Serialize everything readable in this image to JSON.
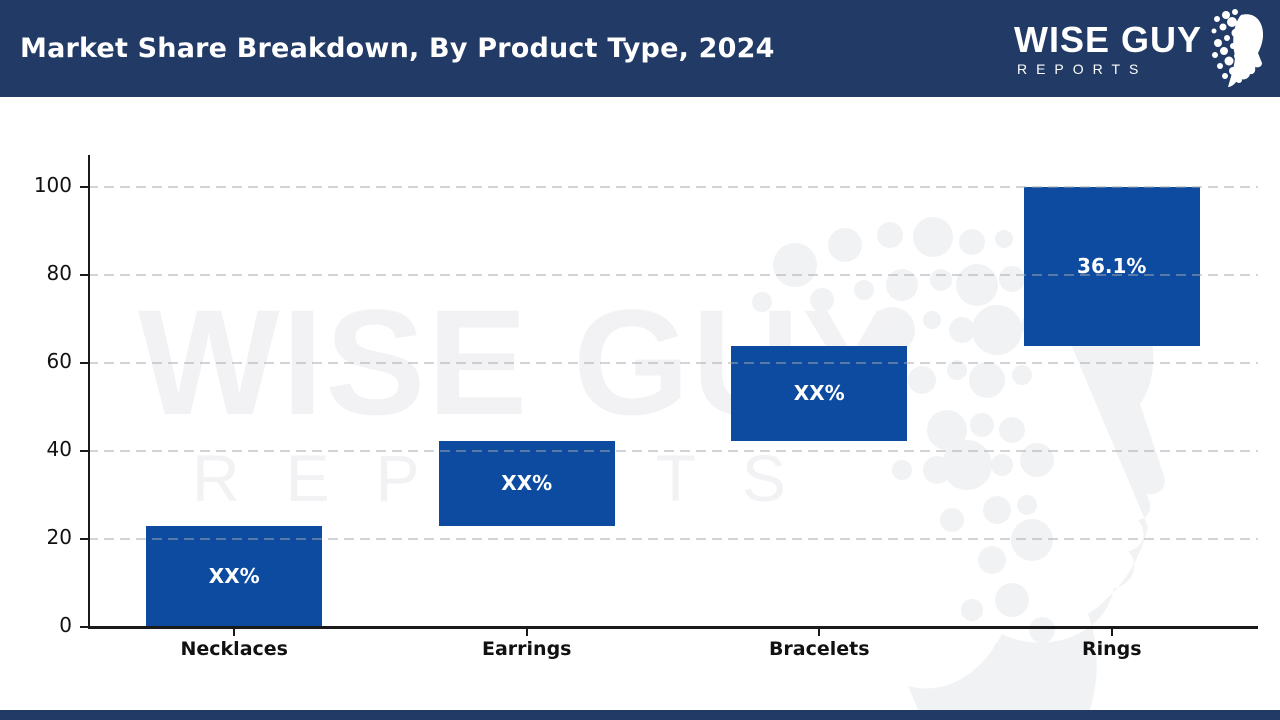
{
  "header": {
    "title": "Market Share Breakdown, By Product Type, 2024",
    "logo": {
      "line1": "WISE GUY",
      "line2": "REPORTS"
    }
  },
  "watermark": {
    "line1": "WISE GUY",
    "line2": "REPORTS"
  },
  "colors": {
    "header_bg": "#223a66",
    "bar_blue": "#0c4ba0",
    "grid_gray": "#d6d6d6",
    "watermark_gray": "#f2f2f4",
    "label_white": "#ffffff",
    "axis_black": "#1a1a1a"
  },
  "chart_data": {
    "type": "bar",
    "subtype": "waterfall-floating-bars",
    "title": "Market Share Breakdown, By Product Type, 2024",
    "categories": [
      "Necklaces",
      "Earrings",
      "Bracelets",
      "Rings"
    ],
    "segments": [
      {
        "category": "Necklaces",
        "start": 0,
        "end": 23.0,
        "value": 23.0,
        "label": "XX%"
      },
      {
        "category": "Earrings",
        "start": 23.0,
        "end": 42.3,
        "value": 19.3,
        "label": "XX%"
      },
      {
        "category": "Bracelets",
        "start": 42.3,
        "end": 63.9,
        "value": 21.6,
        "label": "XX%"
      },
      {
        "category": "Rings",
        "start": 63.9,
        "end": 100.0,
        "value": 36.1,
        "label": "36.1%"
      }
    ],
    "yticks": [
      0,
      20,
      40,
      60,
      80,
      100
    ],
    "ytick_labels": [
      "0",
      "20",
      "40",
      "60",
      "80",
      "100"
    ],
    "ylim": [
      0,
      107
    ],
    "xlabel": "",
    "ylabel": "",
    "grid": "horizontal-dashed-over-bars",
    "legend": "none",
    "bar_color": "#0c4ba0"
  }
}
